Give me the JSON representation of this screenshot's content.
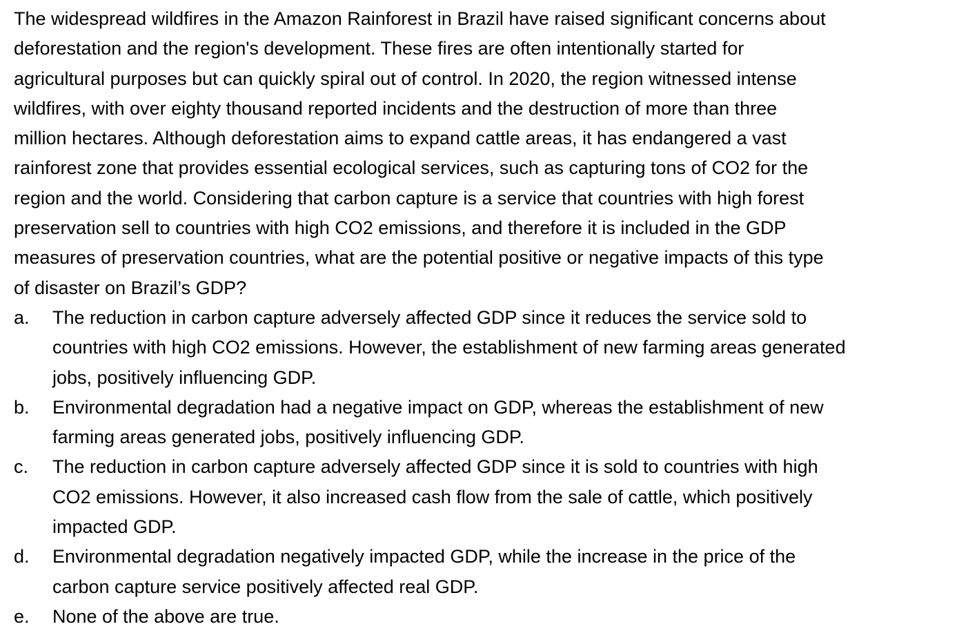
{
  "page": {
    "background_color": "#ffffff",
    "text_color": "#000000"
  },
  "question": {
    "paragraph": "The widespread wildfires in the Amazon Rainforest in Brazil have raised significant concerns about\ndeforestation and the region's development. These fires are often intentionally started for\nagricultural purposes but can quickly spiral out of control. In 2020, the region witnessed intense\nwildfires, with over eighty thousand reported incidents and the destruction of more than three\nmillion hectares. Although deforestation aims to expand cattle areas, it has endangered a vast\nrainforest zone that provides essential ecological services, such as capturing tons of CO2 for the\nregion and the world. Considering that carbon capture is a service that countries with high forest\npreservation sell to countries with high CO2 emissions, and therefore it is included in the GDP\nmeasures of preservation countries, what are the potential positive or negative impacts of this type\nof disaster on Brazil’s GDP?"
  },
  "options": [
    {
      "label": "a.",
      "text": "The reduction in carbon capture adversely affected GDP since it reduces the service sold to\ncountries with high CO2 emissions. However, the establishment of new farming areas generated\njobs, positively influencing GDP."
    },
    {
      "label": "b.",
      "text": "Environmental degradation had a negative impact on GDP, whereas the establishment of new\nfarming areas generated jobs, positively influencing GDP."
    },
    {
      "label": "c.",
      "text": "The reduction in carbon capture adversely affected GDP since it is sold to countries with high\nCO2 emissions. However, it also increased cash flow from the sale of cattle, which positively\nimpacted GDP."
    },
    {
      "label": "d.",
      "text": "Environmental degradation negatively impacted GDP, while the increase in the price of the\ncarbon capture service positively affected real GDP."
    },
    {
      "label": "e.",
      "text": "None of the above are true."
    }
  ]
}
